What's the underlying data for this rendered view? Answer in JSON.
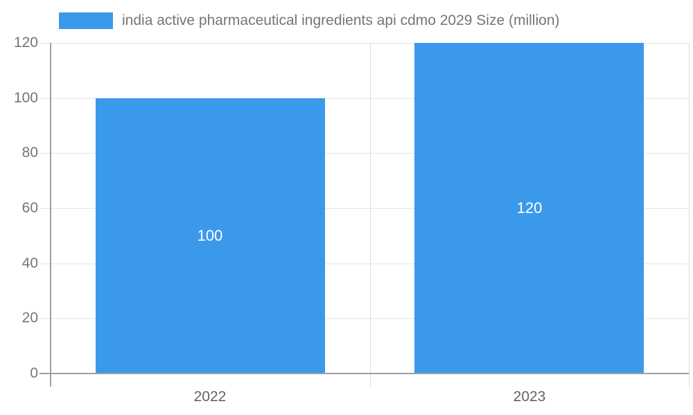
{
  "chart_data": {
    "type": "bar",
    "title": "",
    "legend": {
      "position": "top-left",
      "label": "india active pharmaceutical ingredients api cdmo 2029 Size (million)"
    },
    "categories": [
      "2022",
      "2023"
    ],
    "series": [
      {
        "name": "india active pharmaceutical ingredients api cdmo 2029 Size (million)",
        "values": [
          100,
          120
        ],
        "data_labels": [
          "100",
          "120"
        ],
        "color": "#3B99EC"
      }
    ],
    "xlabel": "",
    "ylabel": "",
    "ylim": [
      0,
      120
    ],
    "yticks": [
      0,
      20,
      40,
      60,
      80,
      100,
      120
    ],
    "grid": true
  },
  "colors": {
    "bar": "#3B99EC",
    "gridline": "#e6e6e6",
    "separator_line": "#dcdcdc",
    "axis_line": "#9e9e9e",
    "y_tick_label": "#757575",
    "x_tick_label": "#5f6368",
    "data_label": "#ffffff",
    "legend_text": "#757575",
    "background": "#ffffff"
  }
}
